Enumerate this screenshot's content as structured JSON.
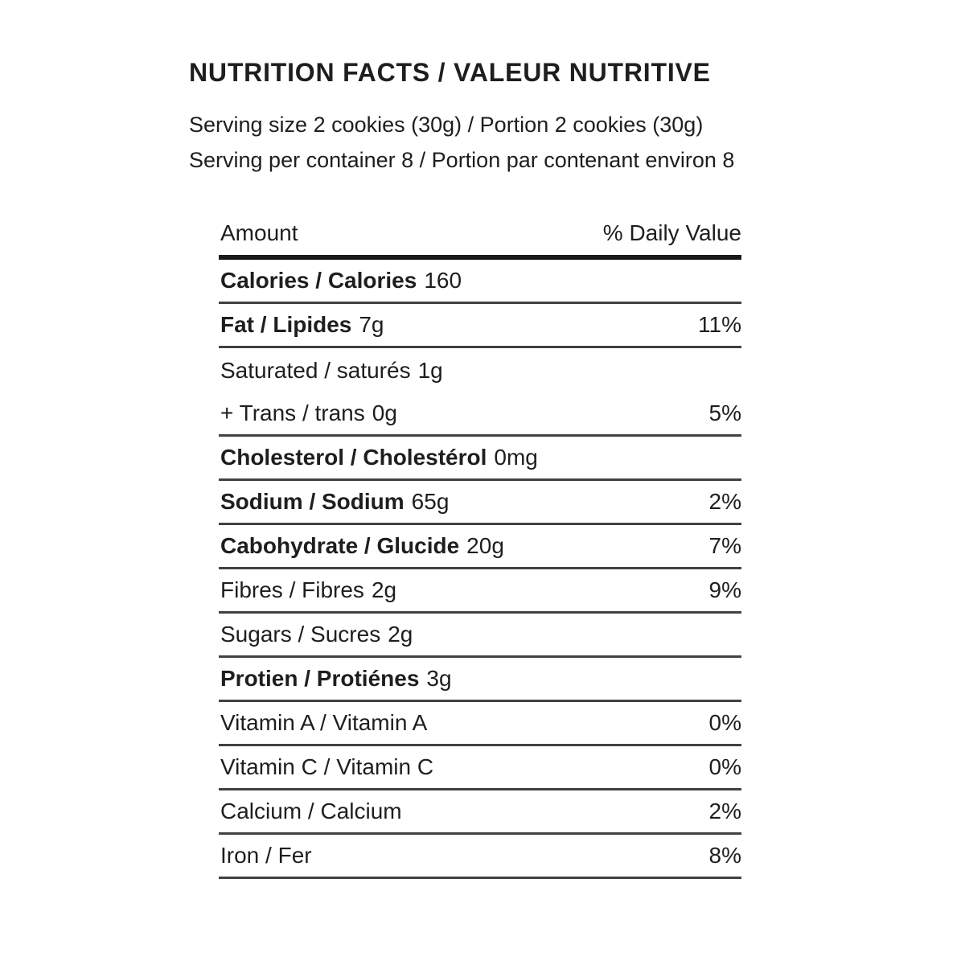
{
  "title": "NUTRITION FACTS / VALEUR NUTRITIVE",
  "serving_info": {
    "serving_size": "Serving size 2 cookies (30g) / Portion 2 cookies (30g)",
    "servings_per_container": "Serving per container 8 / Portion par contenant environ 8"
  },
  "table": {
    "header": {
      "amount_label": "Amount",
      "daily_value_label": "% Daily Value"
    },
    "rows": [
      {
        "name": "Calories / Calories",
        "amount": "160",
        "daily_value": "",
        "bold": true,
        "divider": true
      },
      {
        "name": "Fat / Lipides",
        "amount": "7g",
        "daily_value": "11%",
        "bold": true,
        "divider": true
      },
      {
        "name": "Saturated / saturés",
        "amount": "1g",
        "daily_value": "",
        "bold": false,
        "divider": false
      },
      {
        "name": "+ Trans / trans",
        "amount": "0g",
        "daily_value": "5%",
        "bold": false,
        "divider": true
      },
      {
        "name": "Cholesterol / Cholestérol",
        "amount": "0mg",
        "daily_value": "",
        "bold": true,
        "divider": true
      },
      {
        "name": "Sodium / Sodium",
        "amount": "65g",
        "daily_value": "2%",
        "bold": true,
        "divider": true
      },
      {
        "name": "Cabohydrate / Glucide",
        "amount": "20g",
        "daily_value": "7%",
        "bold": true,
        "divider": true
      },
      {
        "name": "Fibres / Fibres",
        "amount": "2g",
        "daily_value": "9%",
        "bold": false,
        "divider": true
      },
      {
        "name": "Sugars / Sucres",
        "amount": "2g",
        "daily_value": "",
        "bold": false,
        "divider": true
      },
      {
        "name": "Protien / Protiénes",
        "amount": "3g",
        "daily_value": "",
        "bold": true,
        "divider": true
      },
      {
        "name": "Vitamin A / Vitamin A",
        "amount": "",
        "daily_value": "0%",
        "bold": false,
        "divider": true
      },
      {
        "name": "Vitamin C / Vitamin C",
        "amount": "",
        "daily_value": "0%",
        "bold": false,
        "divider": true
      },
      {
        "name": "Calcium / Calcium",
        "amount": "",
        "daily_value": "2%",
        "bold": false,
        "divider": true
      },
      {
        "name": "Iron / Fer",
        "amount": "",
        "daily_value": "8%",
        "bold": false,
        "divider": true
      }
    ]
  },
  "colors": {
    "text": "#1e1e1e",
    "divider": "#414141",
    "header_bar": "#191919",
    "background": "#ffffff"
  }
}
